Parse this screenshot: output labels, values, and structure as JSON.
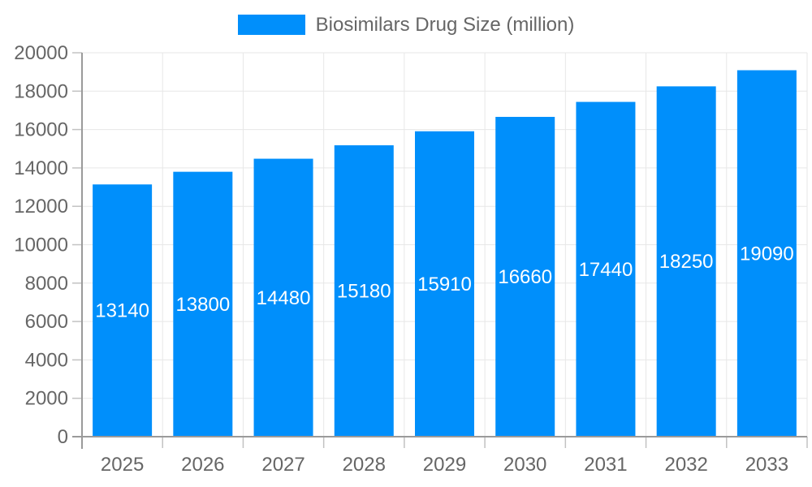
{
  "chart_data": {
    "type": "bar",
    "title": "Biosimilars Drug Size (million)",
    "legend": {
      "label": "Biosimilars Drug Size (million)",
      "position": "top"
    },
    "categories": [
      "2025",
      "2026",
      "2027",
      "2028",
      "2029",
      "2030",
      "2031",
      "2032",
      "2033"
    ],
    "series": [
      {
        "name": "Biosimilars Drug Size (million)",
        "values": [
          13140,
          13800,
          14480,
          15180,
          15910,
          16660,
          17440,
          18250,
          19090
        ]
      }
    ],
    "xlabel": "",
    "ylabel": "",
    "ylim": [
      0,
      20000
    ],
    "ytick_step": 2000,
    "grid": true,
    "bar_labels_visible": true,
    "colors": {
      "bar": "#008FFB",
      "bar_label": "#ffffff",
      "axis_label": "#666666",
      "legend_text": "#666666",
      "gridline": "#e7e7e7",
      "tick": "#c2c2c2",
      "axis_line": "#9a9a9a",
      "background": "#ffffff"
    }
  }
}
